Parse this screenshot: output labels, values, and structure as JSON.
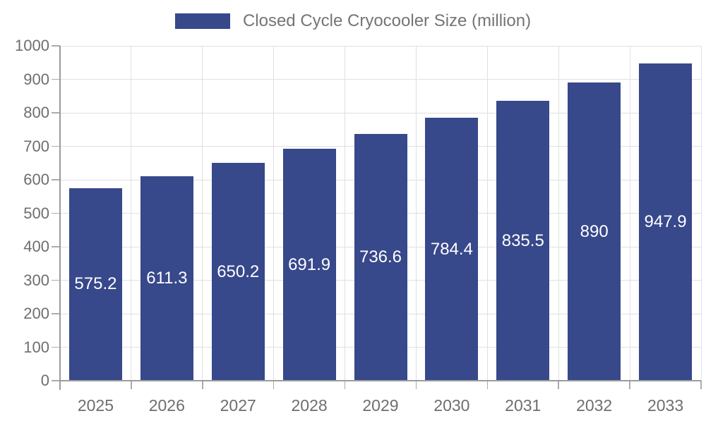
{
  "legend": {
    "label": "Closed Cycle Cryocooler Size (million)"
  },
  "chart_data": {
    "type": "bar",
    "title": "Closed Cycle Cryocooler Size (million)",
    "categories": [
      "2025",
      "2026",
      "2027",
      "2028",
      "2029",
      "2030",
      "2031",
      "2032",
      "2033"
    ],
    "values": [
      575.2,
      611.3,
      650.2,
      691.9,
      736.6,
      784.4,
      835.5,
      890,
      947.9
    ],
    "value_labels": [
      "575.2",
      "611.3",
      "650.2",
      "691.9",
      "736.6",
      "784.4",
      "835.5",
      "890",
      "947.9"
    ],
    "series_name": "Closed Cycle Cryocooler Size (million)",
    "xlabel": "",
    "ylabel": "",
    "ylim": [
      0,
      1000
    ],
    "yticks": [
      0,
      100,
      200,
      300,
      400,
      500,
      600,
      700,
      800,
      900,
      1000
    ],
    "ytick_labels": [
      "0",
      "100",
      "200",
      "300",
      "400",
      "500",
      "600",
      "700",
      "800",
      "900",
      "1000"
    ],
    "grid": true,
    "legend_position": "top-center",
    "colors": {
      "bar": "#37488B",
      "axis_line": "#9B9B9B",
      "grid_line": "#E0E0E0",
      "tick_mark": "#ABABAB",
      "tick_label": "#6E6E6E",
      "legend_text": "#757575",
      "value_label": "#FFFFFF",
      "background": "#FFFFFF"
    }
  }
}
